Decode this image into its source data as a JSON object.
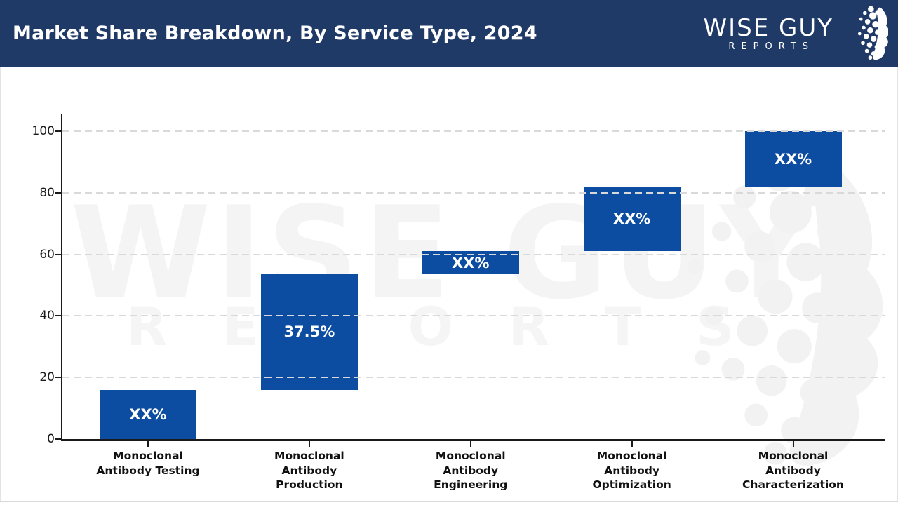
{
  "header": {
    "title": "Market Share Breakdown, By Service Type, 2024",
    "bg_color": "#203a68",
    "logo": {
      "name_line": "WISE GUY",
      "reports_line": "REPORTS",
      "head_icon": "dotted-face-profile"
    }
  },
  "watermark": {
    "line1": "WISE GUY",
    "line2": "R E P O R T S"
  },
  "colors": {
    "header_bg": "#203a68",
    "bar_blue": "#0c4da2",
    "gridline": "#d9d9d9",
    "axis": "#1a1a1a",
    "watermark_gray": "#f2f2f2"
  },
  "chart_data": {
    "type": "bar",
    "subtype": "waterfall",
    "title": "Market Share Breakdown, By Service Type, 2024",
    "categories": [
      [
        "Monoclonal",
        "Antibody Testing"
      ],
      [
        "Monoclonal",
        "Antibody",
        "Production"
      ],
      [
        "Monoclonal",
        "Antibody",
        "Engineering"
      ],
      [
        "Monoclonal",
        "Antibody",
        "Optimization"
      ],
      [
        "Monoclonal",
        "Antibody",
        "Characterization"
      ]
    ],
    "values": [
      16,
      37.5,
      7.5,
      21,
      18
    ],
    "cumulative_starts": [
      0,
      16,
      53.5,
      61,
      82
    ],
    "cumulative_ends": [
      16,
      53.5,
      61,
      82,
      100
    ],
    "bar_labels": [
      "XX%",
      "37.5%",
      "XX%",
      "XX%",
      "XX%"
    ],
    "yticks": [
      0,
      20,
      40,
      60,
      80,
      100
    ],
    "ylim": [
      0,
      105
    ],
    "xlabel": "",
    "ylabel": "",
    "grid": "horizontal-dashed-over-bars",
    "legend": "none",
    "bar_color": "#0c4da2",
    "bar_label_color": "#ffffff"
  }
}
